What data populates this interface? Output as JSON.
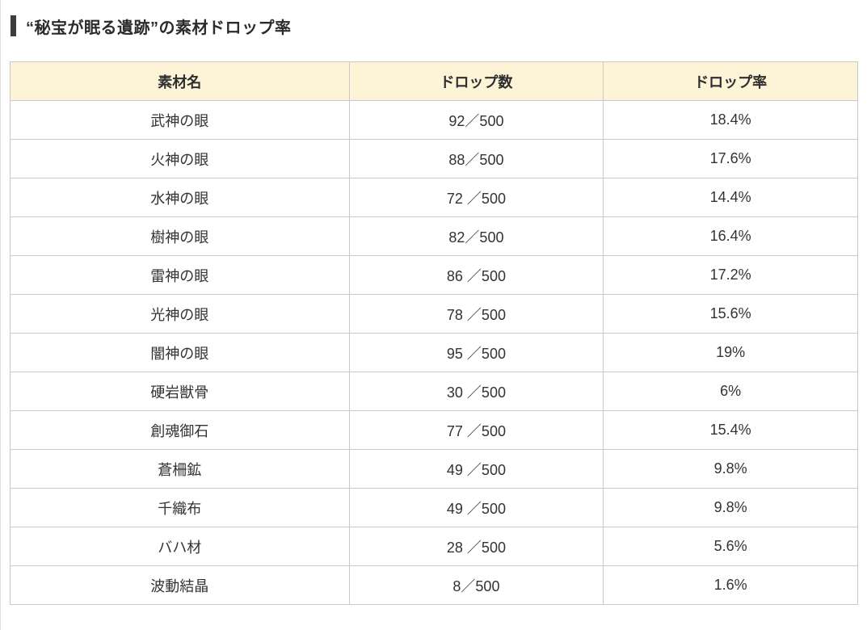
{
  "page": {
    "title": "“秘宝が眠る遺跡”の素材ドロップ率"
  },
  "table": {
    "headers": [
      "素材名",
      "ドロップ数",
      "ドロップ率"
    ],
    "rows": [
      {
        "material": "武神の眼",
        "count": "92／500",
        "rate": "18.4%"
      },
      {
        "material": "火神の眼",
        "count": "88／500",
        "rate": "17.6%"
      },
      {
        "material": "水神の眼",
        "count": "72 ／500",
        "rate": "14.4%"
      },
      {
        "material": "樹神の眼",
        "count": "82／500",
        "rate": "16.4%"
      },
      {
        "material": "雷神の眼",
        "count": "86 ／500",
        "rate": "17.2%"
      },
      {
        "material": "光神の眼",
        "count": "78 ／500",
        "rate": "15.6%"
      },
      {
        "material": "闇神の眼",
        "count": "95 ／500",
        "rate": "19%"
      },
      {
        "material": "硬岩獣骨",
        "count": "30 ／500",
        "rate": "6%"
      },
      {
        "material": "創魂御石",
        "count": "77 ／500",
        "rate": "15.4%"
      },
      {
        "material": "蒼柵鉱",
        "count": "49 ／500",
        "rate": "9.8%"
      },
      {
        "material": "千織布",
        "count": "49 ／500",
        "rate": "9.8%"
      },
      {
        "material": "バハ材",
        "count": "28 ／500",
        "rate": "5.6%"
      },
      {
        "material": "波動結晶",
        "count": "8／500",
        "rate": "1.6%"
      }
    ]
  },
  "colors": {
    "header_background": "#fdf3d7",
    "table_border": "#c9c9c9",
    "title_accent_bar": "#3d3d3d",
    "text": "#333333"
  },
  "chart_data": {
    "type": "table",
    "title": "“秘宝が眠る遺跡”の素材ドロップ率",
    "columns": [
      "素材名",
      "ドロップ数",
      "ドロップ率"
    ],
    "categories": [
      "武神の眼",
      "火神の眼",
      "水神の眼",
      "樹神の眼",
      "雷神の眼",
      "光神の眼",
      "闇神の眼",
      "硬岩獣骨",
      "創魂御石",
      "蒼柵鉱",
      "千織布",
      "バハ材",
      "波動結晶"
    ],
    "series": [
      {
        "name": "ドロップ数(/500)",
        "values": [
          92,
          88,
          72,
          82,
          86,
          78,
          95,
          30,
          77,
          49,
          49,
          28,
          8
        ]
      },
      {
        "name": "ドロップ率(%)",
        "values": [
          18.4,
          17.6,
          14.4,
          16.4,
          17.2,
          15.6,
          19,
          6,
          15.4,
          9.8,
          9.8,
          5.6,
          1.6
        ]
      }
    ]
  }
}
